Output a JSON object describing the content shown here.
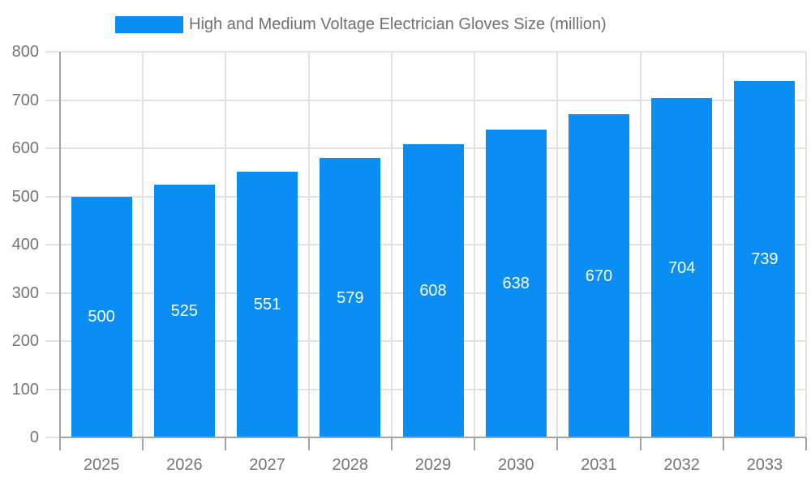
{
  "chart_data": {
    "type": "bar",
    "title": "High and Medium Voltage Electrician Gloves Size (million)",
    "categories": [
      "2025",
      "2026",
      "2027",
      "2028",
      "2029",
      "2030",
      "2031",
      "2032",
      "2033"
    ],
    "values": [
      500,
      525,
      551,
      579,
      608,
      638,
      670,
      704,
      739
    ],
    "xlabel": "",
    "ylabel": "",
    "ylim": [
      0,
      800
    ],
    "yticks": [
      0,
      100,
      200,
      300,
      400,
      500,
      600,
      700,
      800
    ],
    "grid": true,
    "legend_position": "top",
    "bar_color": "#0a8ef4",
    "value_label_color": "#ffffff",
    "axis_color": "#a3a3a3",
    "grid_color": "#e2e2e2",
    "tick_label_color": "#757575",
    "title_color": "#707070"
  }
}
